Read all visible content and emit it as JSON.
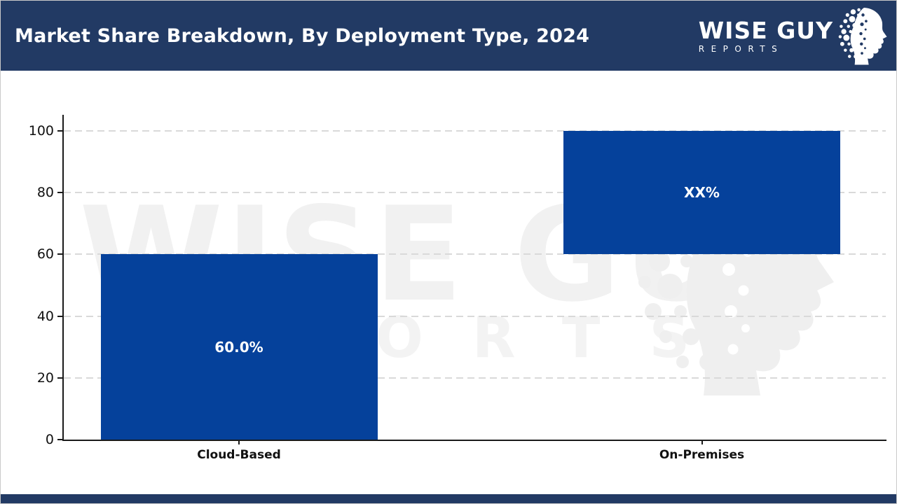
{
  "header": {
    "title": "Market Share Breakdown, By Deployment Type, 2024",
    "background_color": "#223A64",
    "logo": {
      "wordmark": "WISE GUY",
      "subtitle": "REPORTS"
    }
  },
  "chart_data": {
    "type": "bar",
    "title": "Market Share Breakdown, By Deployment Type, 2024",
    "categories": [
      "Cloud-Based",
      "On-Premises"
    ],
    "bars": [
      {
        "category": "Cloud-Based",
        "start": 0,
        "end": 60,
        "value_label": "60.0%"
      },
      {
        "category": "On-Premises",
        "start": 60,
        "end": 100,
        "value_label": "XX%"
      }
    ],
    "yticks": [
      0,
      20,
      40,
      60,
      80,
      100
    ],
    "ylim": [
      0,
      105
    ],
    "xlabel": "",
    "ylabel": "",
    "bar_color": "#05419B",
    "grid": {
      "axis": "y",
      "style": "dashed",
      "color": "#D9D9D9"
    },
    "legend_position": "none"
  },
  "watermark": {
    "wordmark": "WISE GUY",
    "subtitle": "REPORTS"
  },
  "footer": {
    "background_color": "#223A64"
  }
}
